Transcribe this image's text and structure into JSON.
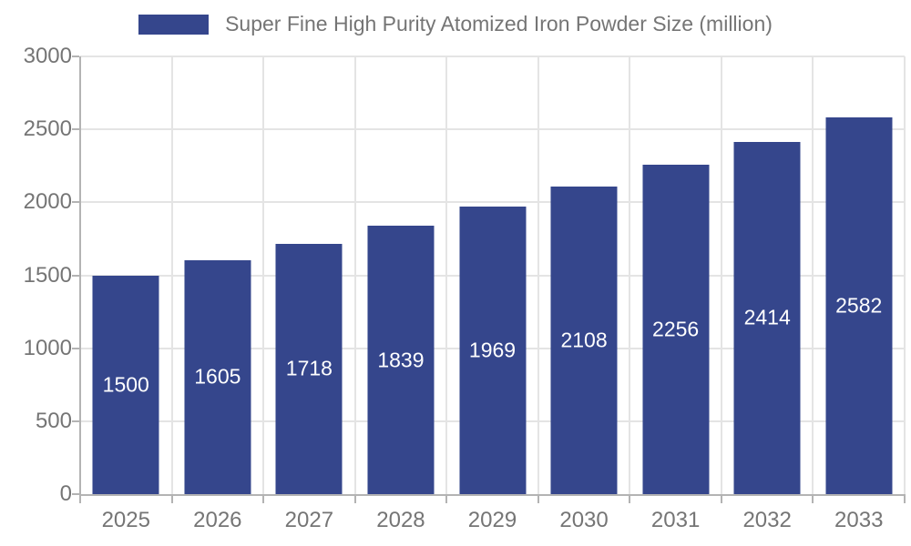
{
  "colors": {
    "bar": "#35468c",
    "grid": "#e4e4e4",
    "axis": "#b3b3b3",
    "text": "#757575",
    "value": "#ffffff",
    "bg": "#ffffff"
  },
  "legend": {
    "label": "Super Fine High Purity Atomized Iron Powder Size (million)"
  },
  "chart_data": {
    "type": "bar",
    "title": "Super Fine High Purity Atomized Iron Powder Size (million)",
    "categories": [
      "2025",
      "2026",
      "2027",
      "2028",
      "2029",
      "2030",
      "2031",
      "2032",
      "2033"
    ],
    "values": [
      1500,
      1605,
      1718,
      1839,
      1969,
      2108,
      2256,
      2414,
      2582
    ],
    "xlabel": "",
    "ylabel": "",
    "ylim": [
      0,
      3000
    ],
    "yticks": [
      0,
      500,
      1000,
      1500,
      2000,
      2500,
      3000
    ],
    "grid": true,
    "legend_position": "top",
    "value_label_position": "inside-center"
  }
}
